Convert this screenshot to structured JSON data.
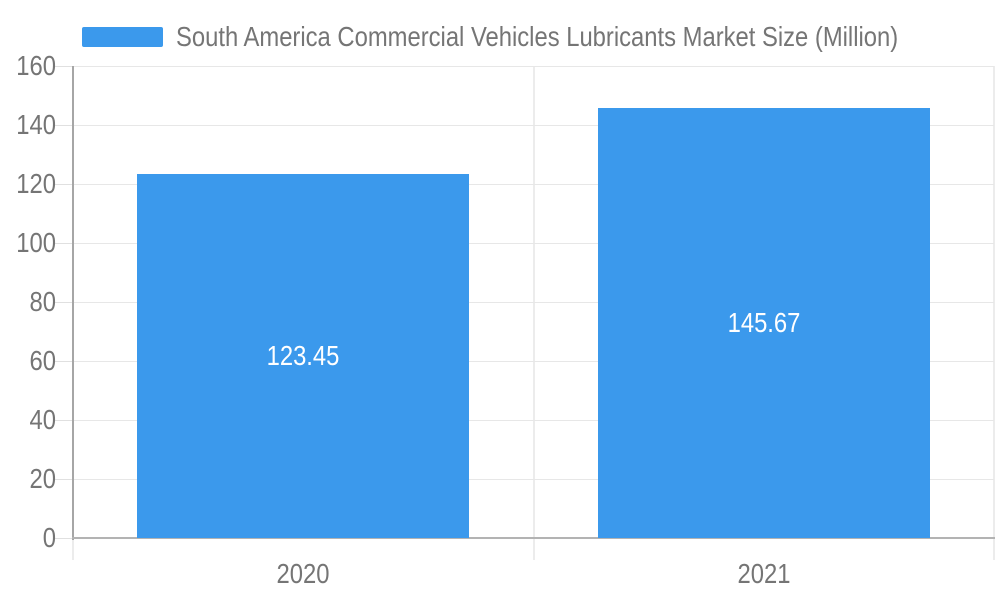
{
  "chart_data": {
    "type": "bar",
    "title": "South America Commercial Vehicles Lubricants Market Size (Million)",
    "categories": [
      "2020",
      "2021"
    ],
    "series": [
      {
        "name": "South America Commercial Vehicles Lubricants Market Size (Million)",
        "values": [
          123.45,
          145.67
        ]
      }
    ],
    "value_labels": [
      "123.45",
      "145.67"
    ],
    "xlabel": "",
    "ylabel": "",
    "ylim": [
      0,
      160
    ],
    "yticks": [
      0,
      20,
      40,
      60,
      80,
      100,
      120,
      140,
      160
    ],
    "grid": true,
    "legend_position": "top",
    "bar_color": "#3b99ec",
    "value_label_color": "#ffffff",
    "axis_text_color": "#757575"
  }
}
